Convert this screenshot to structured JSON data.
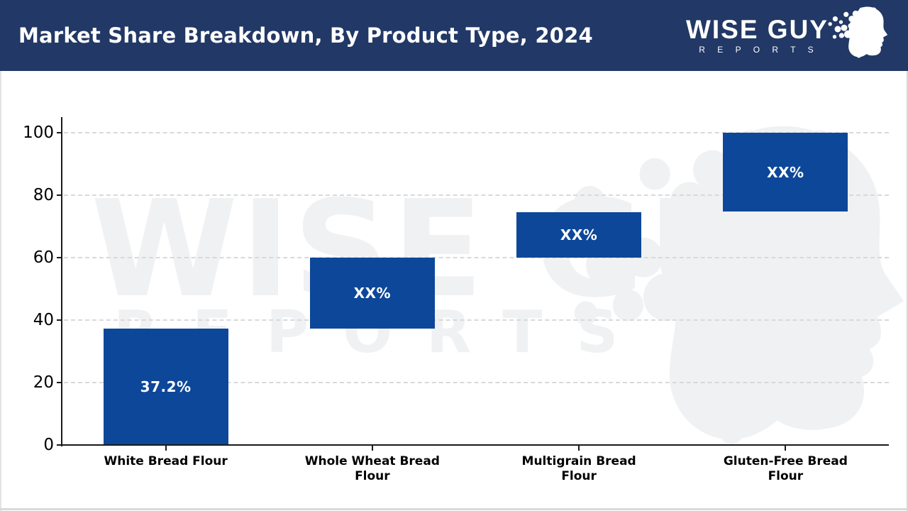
{
  "header": {
    "title": "Market Share Breakdown, By Product Type, 2024",
    "logo": {
      "name": "WISE GUY",
      "tagline": "R E P O R T S"
    }
  },
  "watermark": {
    "name": "WISE GUY",
    "tagline": "REPORTS"
  },
  "chart_data": {
    "type": "bar",
    "subtype": "waterfall",
    "title": "Market Share Breakdown, By Product Type, 2024",
    "categories": [
      "White Bread Flour",
      "Whole Wheat Bread\nFlour",
      "Multigrain Bread\nFlour",
      "Gluten-Free Bread\nFlour"
    ],
    "segments": [
      {
        "category": "White Bread Flour",
        "start": 0,
        "end": 37.2,
        "label": "37.2%"
      },
      {
        "category": "Whole Wheat Bread Flour",
        "start": 37.2,
        "end": 60,
        "label": "XX%"
      },
      {
        "category": "Multigrain Bread Flour",
        "start": 60,
        "end": 74.6,
        "label": "XX%"
      },
      {
        "category": "Gluten-Free Bread Flour",
        "start": 74.7,
        "end": 100,
        "label": "XX%"
      }
    ],
    "ylim": [
      0,
      100
    ],
    "yticks": [
      0,
      20,
      40,
      60,
      80,
      100
    ],
    "grid": {
      "horizontal": true,
      "style": "dashed"
    },
    "legend": "none",
    "bar_color": "#0d4799",
    "bar_label_color": "#ffffff"
  },
  "colors": {
    "header_bg": "#223866",
    "bar": "#0d4799",
    "gridline": "#d9d9d9",
    "axis": "#1a1a1a",
    "watermark": "#f0f1f3"
  }
}
